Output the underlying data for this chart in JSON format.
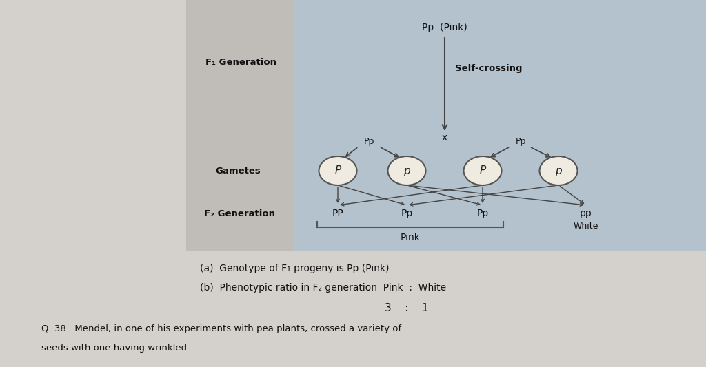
{
  "page_bg": "#d4d0cc",
  "left_panel_color": "#c8c4c0",
  "diagram_panel_color": "#b8c4d0",
  "label_f1": "F₁ Generation",
  "label_gametes": "Gametes",
  "label_f2": "F₂ Generation",
  "pp_pink_label": "Pp  (Pink)",
  "self_crossing_label": "Self-crossing",
  "gamete_labels": [
    "P",
    "p",
    "P",
    "p"
  ],
  "left_pp": "Pp",
  "right_pp": "Pp",
  "f2_labels": [
    "PP",
    "Pp",
    "Pp",
    "pp"
  ],
  "pink_label": "Pink",
  "white_label": "White",
  "note_a": "(a)  Genotype of F₁ progeny is Pp (Pink)",
  "note_b_prefix": "(b)  Phenotypic ratio in F₂ generation  Pink  :  White",
  "note_ratio": "3    :    1",
  "note_q": "Q. 38.  Mendel, in one of his experiments with pea plants, crossed a variety of",
  "note_q2": "seeds with one having wrinkled...",
  "ellipse_fc": "#f0ebe0",
  "ellipse_ec": "#555555",
  "line_color": "#555555",
  "arrow_color": "#444444",
  "text_dark": "#111111"
}
